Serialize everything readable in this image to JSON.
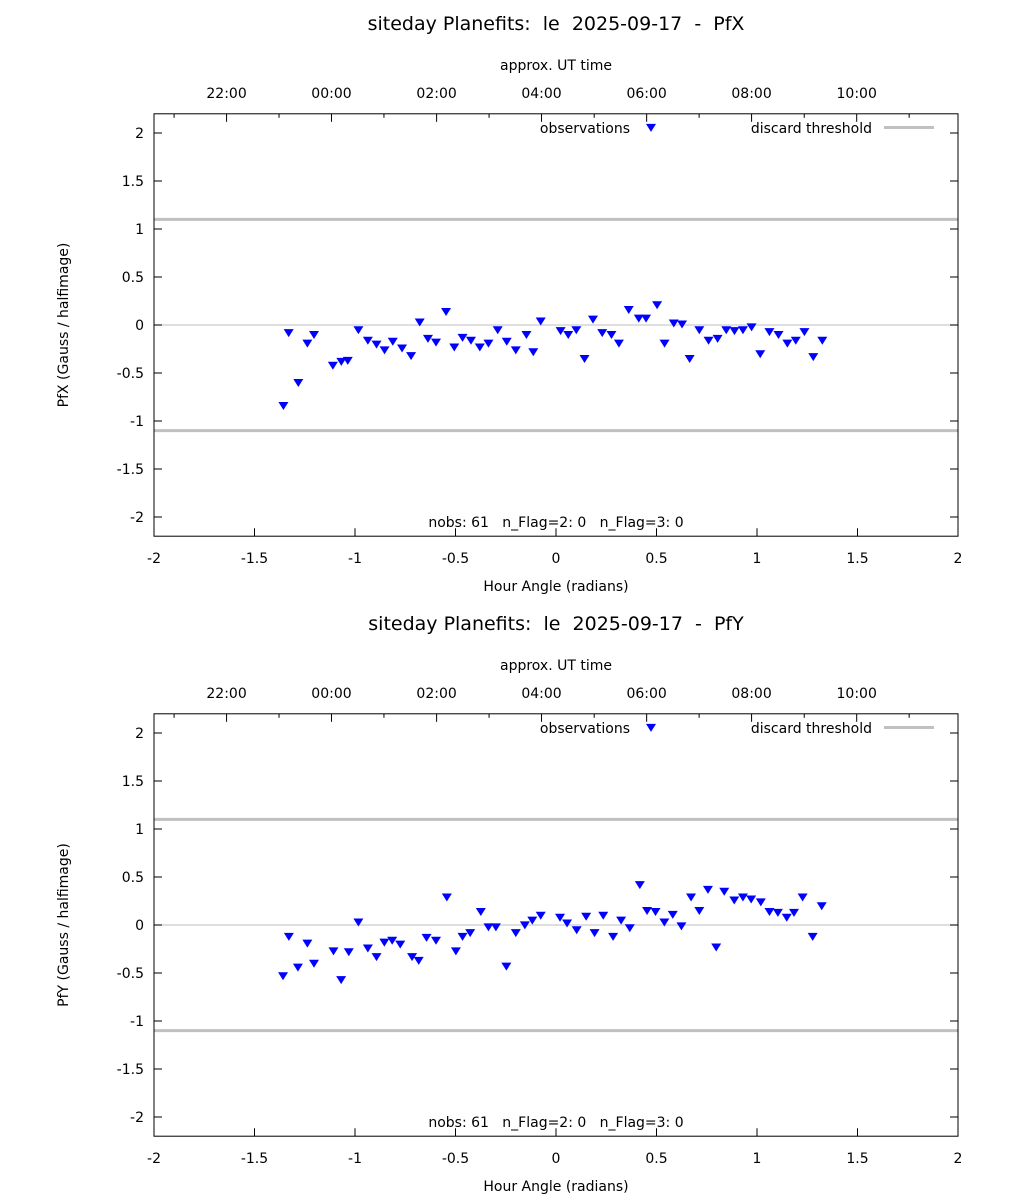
{
  "page": {
    "background": "#ffffff"
  },
  "chart_data": [
    {
      "type": "scatter",
      "title": "siteday Planefits:  le  2025-09-17  -  PfX",
      "top_axis": {
        "label": "approx. UT time",
        "major_ticks": [
          {
            "label": "22:00",
            "x": -1.639
          },
          {
            "label": "00:00",
            "x": -1.117
          },
          {
            "label": "02:00",
            "x": -0.594
          },
          {
            "label": "04:00",
            "x": -0.072
          },
          {
            "label": "06:00",
            "x": 0.451
          },
          {
            "label": "08:00",
            "x": 0.973
          },
          {
            "label": "10:00",
            "x": 1.496
          }
        ],
        "minor_tick_xs": [
          -1.9,
          -1.378,
          -0.856,
          -0.333,
          0.19,
          0.712,
          1.235,
          1.757
        ]
      },
      "x_axis": {
        "label": "Hour Angle (radians)",
        "range": [
          -2,
          2
        ],
        "ticks": [
          -2,
          -1.5,
          -1,
          -0.5,
          0,
          0.5,
          1,
          1.5,
          2
        ]
      },
      "y_axis": {
        "label": "PfX (Gauss / halfimage)",
        "range": [
          -2.2,
          2.2
        ],
        "ticks": [
          -2,
          -1.5,
          -1,
          -0.5,
          0,
          0.5,
          1,
          1.5,
          2
        ]
      },
      "legend": [
        {
          "label": "observations",
          "type": "point",
          "color": "#0000ff"
        },
        {
          "label": "discard threshold",
          "type": "line",
          "color": "#c0c0c0"
        }
      ],
      "discard_threshold": 1.1,
      "zero_line": 0,
      "annotation": "nobs: 61   n_Flag=2: 0   n_Flag=3: 0",
      "marker_color": "#0000ff",
      "threshold_color": "#c0c0c0",
      "zero_line_color": "#cccccc",
      "points": [
        [
          -1.356,
          -0.84
        ],
        [
          -1.33,
          -0.08
        ],
        [
          -1.282,
          -0.6
        ],
        [
          -1.237,
          -0.19
        ],
        [
          -1.204,
          -0.1
        ],
        [
          -1.11,
          -0.42
        ],
        [
          -1.068,
          -0.38
        ],
        [
          -1.036,
          -0.37
        ],
        [
          -0.983,
          -0.05
        ],
        [
          -0.936,
          -0.16
        ],
        [
          -0.893,
          -0.2
        ],
        [
          -0.853,
          -0.26
        ],
        [
          -0.812,
          -0.17
        ],
        [
          -0.766,
          -0.24
        ],
        [
          -0.721,
          -0.32
        ],
        [
          -0.678,
          0.03
        ],
        [
          -0.637,
          -0.14
        ],
        [
          -0.597,
          -0.18
        ],
        [
          -0.547,
          0.14
        ],
        [
          -0.506,
          -0.23
        ],
        [
          -0.465,
          -0.13
        ],
        [
          -0.423,
          -0.16
        ],
        [
          -0.379,
          -0.23
        ],
        [
          -0.336,
          -0.19
        ],
        [
          -0.29,
          -0.05
        ],
        [
          -0.245,
          -0.17
        ],
        [
          -0.2,
          -0.26
        ],
        [
          -0.147,
          -0.1
        ],
        [
          -0.113,
          -0.28
        ],
        [
          -0.076,
          0.04
        ],
        [
          0.023,
          -0.06
        ],
        [
          0.061,
          -0.1
        ],
        [
          0.101,
          -0.05
        ],
        [
          0.142,
          -0.35
        ],
        [
          0.184,
          0.06
        ],
        [
          0.23,
          -0.08
        ],
        [
          0.276,
          -0.1
        ],
        [
          0.313,
          -0.19
        ],
        [
          0.362,
          0.16
        ],
        [
          0.412,
          0.07
        ],
        [
          0.448,
          0.07
        ],
        [
          0.503,
          0.21
        ],
        [
          0.54,
          -0.19
        ],
        [
          0.586,
          0.02
        ],
        [
          0.627,
          0.01
        ],
        [
          0.665,
          -0.35
        ],
        [
          0.713,
          -0.05
        ],
        [
          0.759,
          -0.16
        ],
        [
          0.804,
          -0.14
        ],
        [
          0.847,
          -0.05
        ],
        [
          0.888,
          -0.06
        ],
        [
          0.93,
          -0.05
        ],
        [
          0.973,
          -0.02
        ],
        [
          1.016,
          -0.3
        ],
        [
          1.062,
          -0.07
        ],
        [
          1.107,
          -0.1
        ],
        [
          1.151,
          -0.19
        ],
        [
          1.193,
          -0.16
        ],
        [
          1.236,
          -0.07
        ],
        [
          1.28,
          -0.33
        ],
        [
          1.325,
          -0.16
        ]
      ]
    },
    {
      "type": "scatter",
      "title": "siteday Planefits:  le  2025-09-17  -  PfY",
      "top_axis": {
        "label": "approx. UT time",
        "major_ticks": [
          {
            "label": "22:00",
            "x": -1.639
          },
          {
            "label": "00:00",
            "x": -1.117
          },
          {
            "label": "02:00",
            "x": -0.594
          },
          {
            "label": "04:00",
            "x": -0.072
          },
          {
            "label": "06:00",
            "x": 0.451
          },
          {
            "label": "08:00",
            "x": 0.973
          },
          {
            "label": "10:00",
            "x": 1.496
          }
        ],
        "minor_tick_xs": [
          -1.9,
          -1.378,
          -0.856,
          -0.333,
          0.19,
          0.712,
          1.235,
          1.757
        ]
      },
      "x_axis": {
        "label": "Hour Angle (radians)",
        "range": [
          -2,
          2
        ],
        "ticks": [
          -2,
          -1.5,
          -1,
          -0.5,
          0,
          0.5,
          1,
          1.5,
          2
        ]
      },
      "y_axis": {
        "label": "PfY (Gauss / halfimage)",
        "range": [
          -2.2,
          2.2
        ],
        "ticks": [
          -2,
          -1.5,
          -1,
          -0.5,
          0,
          0.5,
          1,
          1.5,
          2
        ]
      },
      "legend": [
        {
          "label": "observations",
          "type": "point",
          "color": "#0000ff"
        },
        {
          "label": "discard threshold",
          "type": "line",
          "color": "#c0c0c0"
        }
      ],
      "discard_threshold": 1.1,
      "zero_line": 0,
      "annotation": "nobs: 61   n_Flag=2: 0   n_Flag=3: 0",
      "marker_color": "#0000ff",
      "threshold_color": "#c0c0c0",
      "zero_line_color": "#cccccc",
      "points": [
        [
          -1.358,
          -0.53
        ],
        [
          -1.329,
          -0.12
        ],
        [
          -1.284,
          -0.44
        ],
        [
          -1.237,
          -0.19
        ],
        [
          -1.204,
          -0.4
        ],
        [
          -1.107,
          -0.27
        ],
        [
          -1.069,
          -0.57
        ],
        [
          -1.031,
          -0.28
        ],
        [
          -0.983,
          0.03
        ],
        [
          -0.936,
          -0.24
        ],
        [
          -0.893,
          -0.33
        ],
        [
          -0.854,
          -0.18
        ],
        [
          -0.815,
          -0.16
        ],
        [
          -0.775,
          -0.2
        ],
        [
          -0.716,
          -0.33
        ],
        [
          -0.683,
          -0.37
        ],
        [
          -0.644,
          -0.13
        ],
        [
          -0.597,
          -0.16
        ],
        [
          -0.543,
          0.29
        ],
        [
          -0.498,
          -0.27
        ],
        [
          -0.465,
          -0.12
        ],
        [
          -0.427,
          -0.08
        ],
        [
          -0.374,
          0.14
        ],
        [
          -0.336,
          -0.02
        ],
        [
          -0.299,
          -0.02
        ],
        [
          -0.247,
          -0.43
        ],
        [
          -0.2,
          -0.08
        ],
        [
          -0.155,
          0.0
        ],
        [
          -0.118,
          0.05
        ],
        [
          -0.076,
          0.1
        ],
        [
          0.02,
          0.08
        ],
        [
          0.055,
          0.02
        ],
        [
          0.103,
          -0.05
        ],
        [
          0.15,
          0.09
        ],
        [
          0.192,
          -0.08
        ],
        [
          0.235,
          0.1
        ],
        [
          0.284,
          -0.12
        ],
        [
          0.324,
          0.05
        ],
        [
          0.367,
          -0.03
        ],
        [
          0.417,
          0.42
        ],
        [
          0.453,
          0.15
        ],
        [
          0.495,
          0.14
        ],
        [
          0.539,
          0.03
        ],
        [
          0.581,
          0.11
        ],
        [
          0.624,
          -0.01
        ],
        [
          0.672,
          0.29
        ],
        [
          0.713,
          0.15
        ],
        [
          0.756,
          0.37
        ],
        [
          0.797,
          -0.23
        ],
        [
          0.837,
          0.35
        ],
        [
          0.887,
          0.26
        ],
        [
          0.93,
          0.29
        ],
        [
          0.971,
          0.27
        ],
        [
          1.019,
          0.24
        ],
        [
          1.062,
          0.14
        ],
        [
          1.104,
          0.13
        ],
        [
          1.148,
          0.08
        ],
        [
          1.184,
          0.13
        ],
        [
          1.227,
          0.29
        ],
        [
          1.277,
          -0.12
        ],
        [
          1.322,
          0.2
        ]
      ]
    }
  ]
}
